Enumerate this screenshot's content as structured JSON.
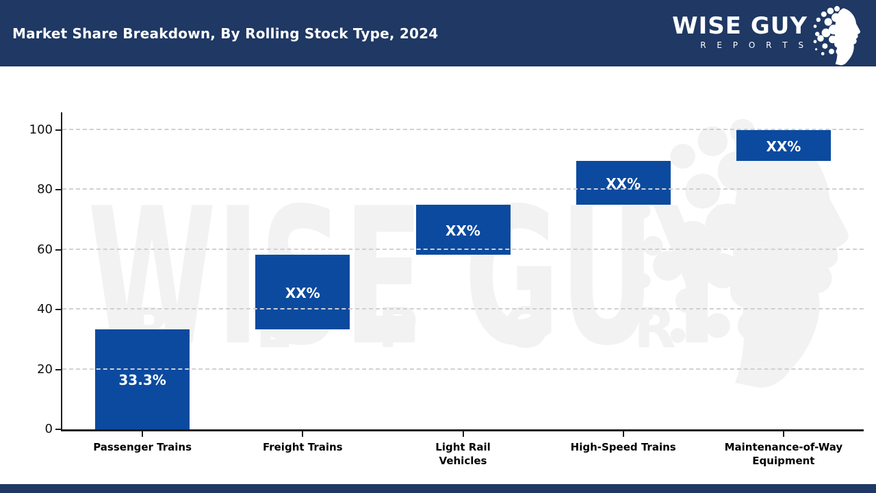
{
  "header": {
    "title": "Market Share Breakdown, By Rolling Stock Type, 2024",
    "logo": {
      "brand_line1": "WISE GUY",
      "brand_line2": "R E P O R T S"
    }
  },
  "watermark": {
    "line1": "WISE GUY",
    "line2": "R E P O R T S"
  },
  "colors": {
    "header_bg": "#1f3864",
    "footer_bg": "#1f3864",
    "bar": "#0b4a9f",
    "bar_label": "#ffffff",
    "grid": "#d0d0d0",
    "axis": "#1c1c1c",
    "watermark": "#f2f2f2"
  },
  "chart_data": {
    "type": "bar",
    "subtype": "floating-segment-waterfall",
    "title": "Market Share Breakdown, By Rolling Stock Type, 2024",
    "xlabel": "",
    "ylabel": "",
    "ylim": [
      0,
      100
    ],
    "yticks": [
      0,
      20,
      40,
      60,
      80,
      100
    ],
    "grid": "horizontal-dashed",
    "legend": "none",
    "categories": [
      "Passenger Trains",
      "Freight Trains",
      "Light Rail Vehicles",
      "High-Speed Trains",
      "Maintenance-of-Way Equipment"
    ],
    "category_label_lines": [
      [
        "Passenger Trains"
      ],
      [
        "Freight Trains"
      ],
      [
        "Light Rail",
        "Vehicles"
      ],
      [
        "High-Speed Trains"
      ],
      [
        "Maintenance-of-Way",
        "Equipment"
      ]
    ],
    "series": [
      {
        "name": "Market Share",
        "segments": [
          {
            "category": "Passenger Trains",
            "from": 0,
            "to": 33.3,
            "label": "33.3%"
          },
          {
            "category": "Freight Trains",
            "from": 33.3,
            "to": 58.3,
            "label": "XX%"
          },
          {
            "category": "Light Rail Vehicles",
            "from": 58.3,
            "to": 75.0,
            "label": "XX%"
          },
          {
            "category": "High-Speed Trains",
            "from": 75.0,
            "to": 89.6,
            "label": "XX%"
          },
          {
            "category": "Maintenance-of-Way Equipment",
            "from": 89.6,
            "to": 100.0,
            "label": "XX%"
          }
        ]
      }
    ]
  }
}
